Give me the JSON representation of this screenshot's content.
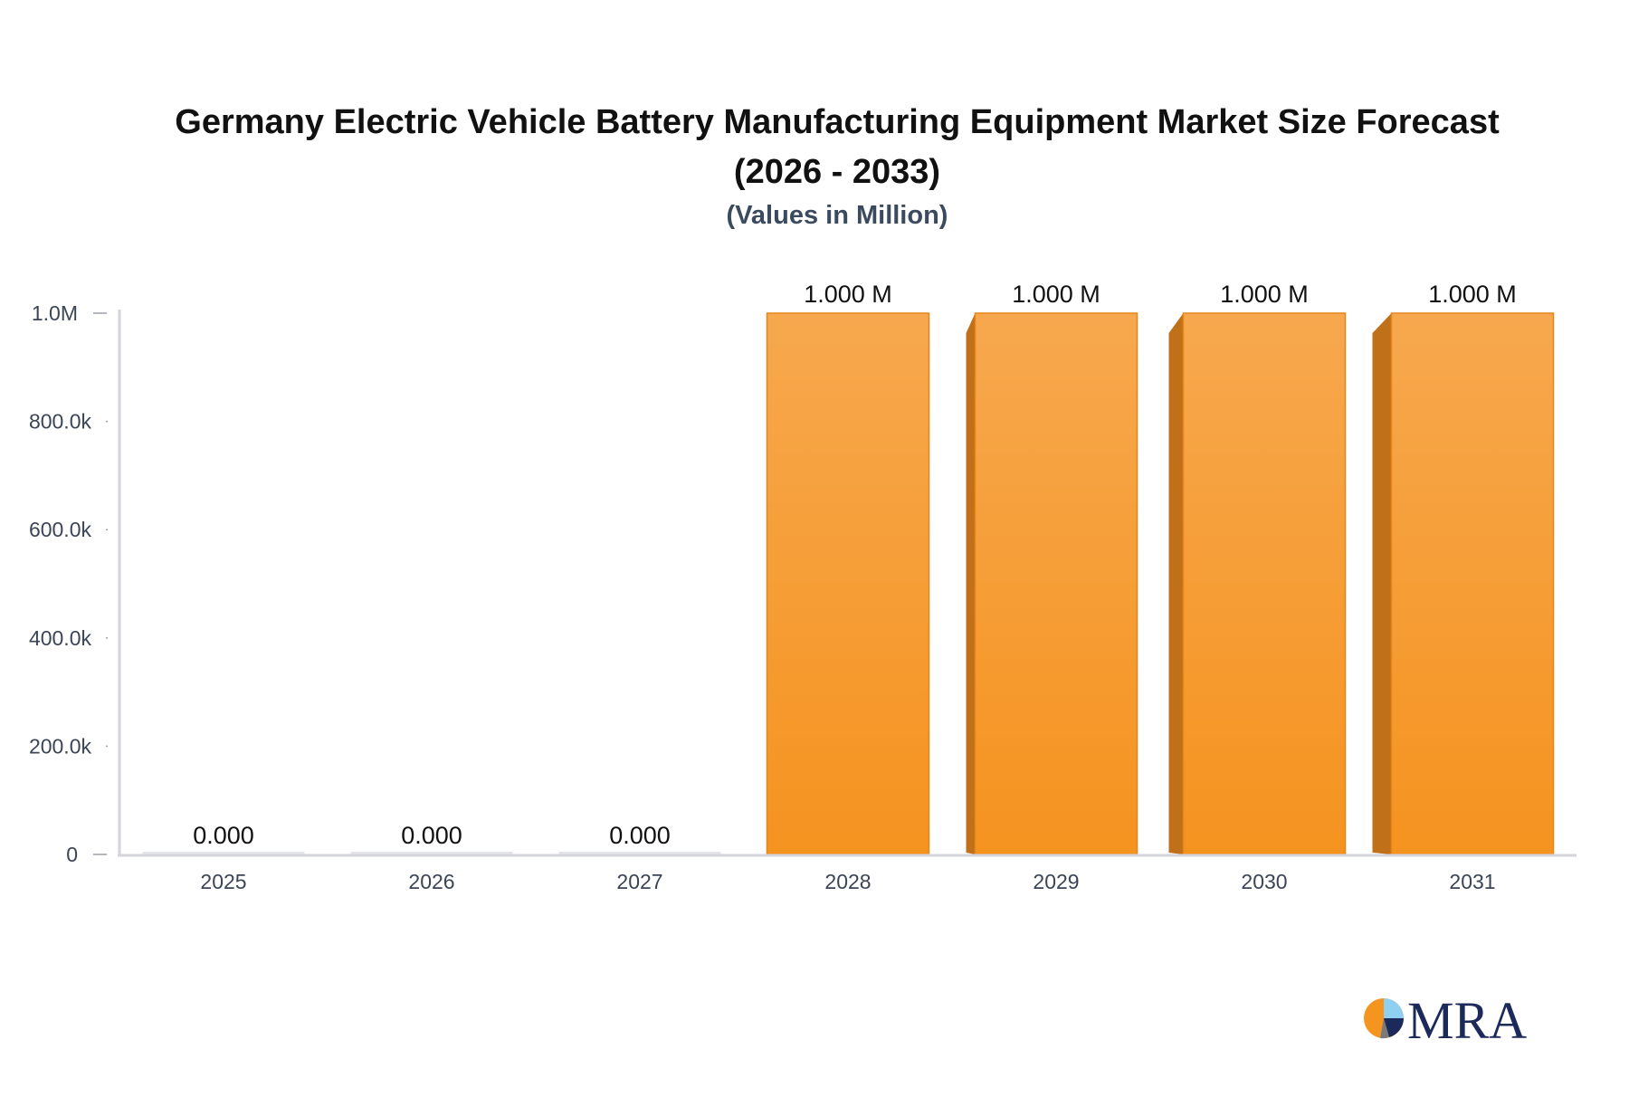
{
  "chart_data": {
    "type": "bar",
    "title": "Germany Electric Vehicle Battery Manufacturing Equipment Market Size Forecast (2026 - 2033)",
    "title_lines": [
      "Germany Electric Vehicle Battery Manufacturing Equipment Market Size Forecast",
      "(2026 - 2033)"
    ],
    "subtitle": "(Values in Million)",
    "categories": [
      "2025",
      "2026",
      "2027",
      "2028",
      "2029",
      "2030",
      "2031"
    ],
    "values": [
      0,
      0,
      0,
      1000000,
      1000000,
      1000000,
      1000000
    ],
    "data_labels": [
      "0.000",
      "0.000",
      "0.000",
      "1.000 M",
      "1.000 M",
      "1.000 M",
      "1.000 M"
    ],
    "y_ticks": [
      0,
      200000,
      400000,
      600000,
      800000,
      1000000
    ],
    "y_tick_labels": [
      "0",
      "200.0k",
      "400.0k",
      "600.0k",
      "800.0k",
      "1.0M"
    ],
    "ylim": [
      0,
      1000000
    ],
    "xlabel": "",
    "ylabel": "",
    "grid": false,
    "bar_color": "#f7a54a",
    "bar_color_bottom": "#f5941f",
    "bar_side_color": "#c07018"
  },
  "logo": {
    "text": "MRA"
  }
}
